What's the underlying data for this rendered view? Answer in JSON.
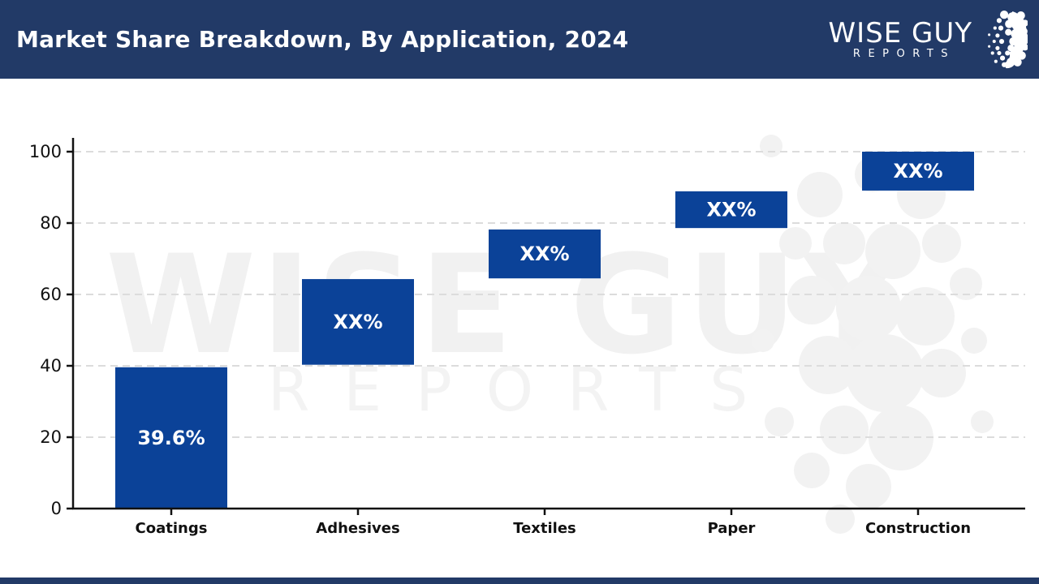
{
  "header": {
    "title": "Market Share Breakdown, By Application, 2024",
    "background_color": "#223a67",
    "logo": {
      "line1": "WISE GUY",
      "line2": "REPORTS"
    }
  },
  "watermark": {
    "line1": "WISE GUY",
    "line2": "REPORTS"
  },
  "chart_data": {
    "type": "bar",
    "subtype": "waterfall",
    "title": "Market Share Breakdown, By Application, 2024",
    "categories": [
      "Coatings",
      "Adhesives",
      "Textiles",
      "Paper",
      "Construction"
    ],
    "segments": [
      {
        "category": "Coatings",
        "start": 0,
        "end": 39.6,
        "label": "39.6%"
      },
      {
        "category": "Adhesives",
        "start": 40.3,
        "end": 64.3,
        "label": "XX%"
      },
      {
        "category": "Textiles",
        "start": 64.5,
        "end": 78.2,
        "label": "XX%"
      },
      {
        "category": "Paper",
        "start": 78.6,
        "end": 88.9,
        "label": "XX%"
      },
      {
        "category": "Construction",
        "start": 89.1,
        "end": 100,
        "label": "XX%"
      }
    ],
    "y_ticks": [
      0,
      20,
      40,
      60,
      80,
      100
    ],
    "ylim": [
      0,
      100
    ],
    "xlabel": "",
    "ylabel": "",
    "grid": "horizontal-dashed",
    "legend": "none",
    "bar_color": "#0b4298",
    "bar_label_color": "#ffffff",
    "axis_color": "#111111",
    "gridline_color": "#dcdcdc"
  },
  "footer": {
    "background_color": "#223a67"
  }
}
